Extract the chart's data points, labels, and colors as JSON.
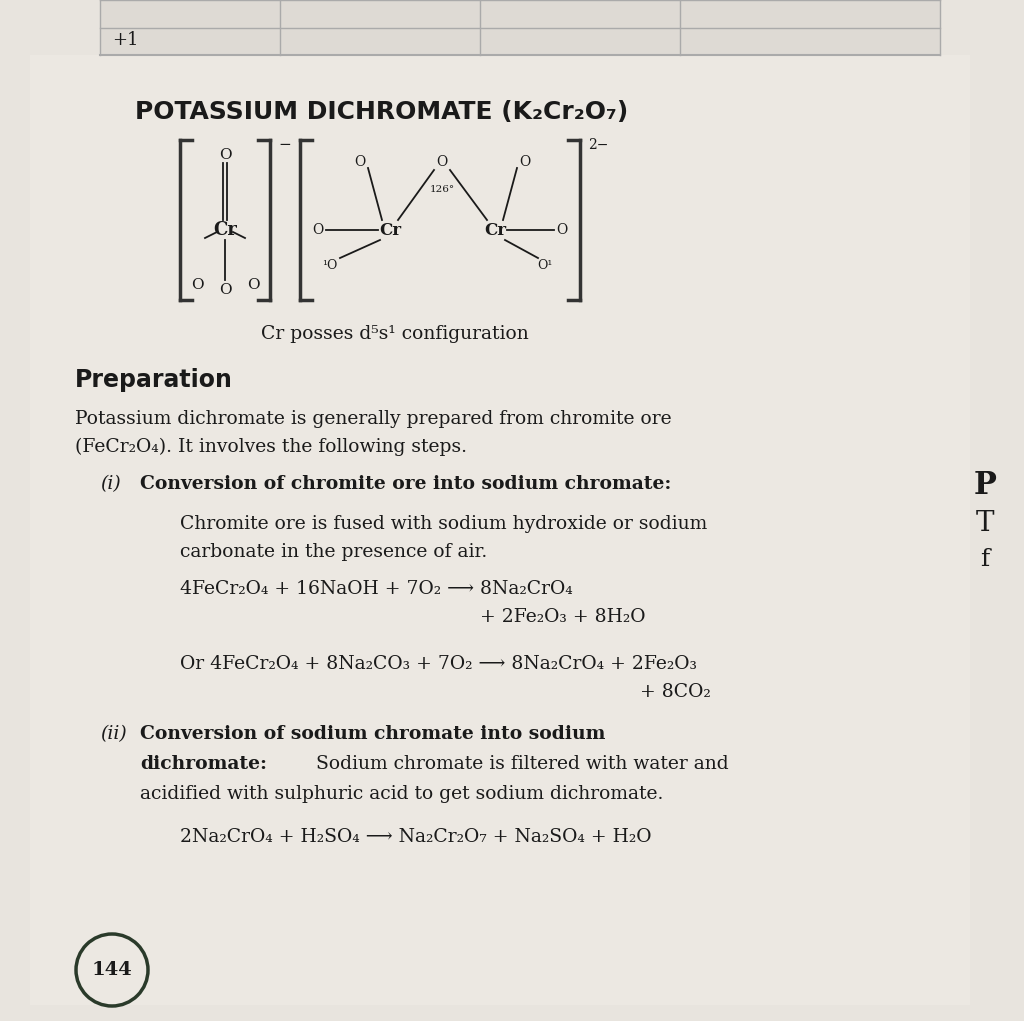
{
  "bg_color": "#e8e4de",
  "page_bg": "#f0ece6",
  "text_color": "#1a1a1a",
  "title": "POTASSIUM DICHROMATE (K₂Cr₂O₇)",
  "subtitle": "Cr posses d⁵s¹ configuration",
  "section_heading": "Preparation",
  "section_body_1": "Potassium dichromate is generally prepared from chromite ore",
  "section_body_2": "(FeCr₂O₄). It involves the following steps.",
  "step_i_label": "(i)",
  "step_i_bold": "Conversion of chromite ore into sodium chromate:",
  "step_i_body_1": "Chromite ore is fused with sodium hydroxide or sodium",
  "step_i_body_2": "carbonate in the presence of air.",
  "eq1_line1": "4FeCr₂O₄ + 16NaOH + 7O₂ ⟶ 8Na₂CrO₄",
  "eq1_line2": "+ 2Fe₂O₃ + 8H₂O",
  "eq2_line1": "Or 4FeCr₂O₄ + 8Na₂CO₃ + 7O₂ ⟶ 8Na₂CrO₄ + 2Fe₂O₃",
  "eq2_line2": "+ 8CO₂",
  "step_ii_label": "(ii)",
  "step_ii_bold1": "Conversion of sodium chromate into sodium",
  "step_ii_bold2": "dichromate:",
  "step_ii_body": "Sodium chromate is filtered with water and",
  "step_ii_body2": "acidified with sulphuric acid to get sodium dichromate.",
  "eq3": "2Na₂CrO₄ + H₂SO₄ ⟶ Na₂Cr₂O₇ + Na₂SO₄ + H₂O",
  "page_number": "144",
  "header_text": "+1",
  "right_P": "P",
  "right_T": "T",
  "right_f": "f"
}
